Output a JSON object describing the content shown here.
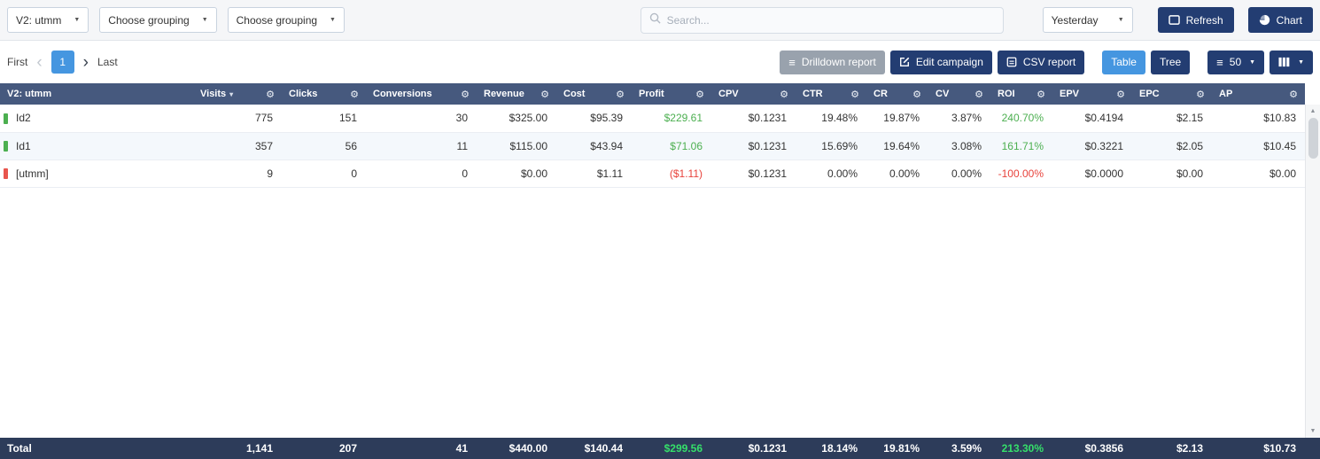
{
  "toolbar": {
    "campaign_select": "V2: utmm",
    "grouping1": "Choose grouping",
    "grouping2": "Choose grouping",
    "search_placeholder": "Search...",
    "date_select": "Yesterday",
    "refresh_label": "Refresh",
    "chart_label": "Chart"
  },
  "pagination": {
    "first": "First",
    "page": "1",
    "last": "Last"
  },
  "actions": {
    "drilldown": "Drilldown report",
    "edit_campaign": "Edit campaign",
    "csv_report": "CSV report",
    "table": "Table",
    "tree": "Tree",
    "page_size": "50"
  },
  "icons": {
    "gear": "⚙",
    "sort_desc": "▾",
    "caret_down": "▼",
    "list": "≡"
  },
  "colors": {
    "header_bg": "#46597e",
    "total_bg": "#2d3c5a",
    "navy_button": "#233d72",
    "active_blue": "#4596e0",
    "positive": "#4caf50",
    "negative": "#e8433c",
    "status_green": "#4caf50",
    "status_red": "#e8554d"
  },
  "table": {
    "columns": [
      {
        "key": "name",
        "label": "V2: utmm",
        "gear": false
      },
      {
        "key": "visits",
        "label": "Visits",
        "gear": true,
        "sort": true
      },
      {
        "key": "clicks",
        "label": "Clicks",
        "gear": true
      },
      {
        "key": "conversions",
        "label": "Conversions",
        "gear": true
      },
      {
        "key": "revenue",
        "label": "Revenue",
        "gear": true
      },
      {
        "key": "cost",
        "label": "Cost",
        "gear": true
      },
      {
        "key": "profit",
        "label": "Profit",
        "gear": true
      },
      {
        "key": "cpv",
        "label": "CPV",
        "gear": true
      },
      {
        "key": "ctr",
        "label": "CTR",
        "gear": true
      },
      {
        "key": "cr",
        "label": "CR",
        "gear": true
      },
      {
        "key": "cv",
        "label": "CV",
        "gear": true
      },
      {
        "key": "roi",
        "label": "ROI",
        "gear": true
      },
      {
        "key": "epv",
        "label": "EPV",
        "gear": true
      },
      {
        "key": "epc",
        "label": "EPC",
        "gear": true
      },
      {
        "key": "ap",
        "label": "AP",
        "gear": true
      }
    ],
    "rows": [
      {
        "status": "green",
        "name": "Id2",
        "visits": "775",
        "clicks": "151",
        "conversions": "30",
        "revenue": "$325.00",
        "cost": "$95.39",
        "profit": "$229.61",
        "profit_class": "pos",
        "cpv": "$0.1231",
        "ctr": "19.48%",
        "cr": "19.87%",
        "cv": "3.87%",
        "roi": "240.70%",
        "roi_class": "pos",
        "epv": "$0.4194",
        "epc": "$2.15",
        "ap": "$10.83"
      },
      {
        "status": "green",
        "name": "Id1",
        "visits": "357",
        "clicks": "56",
        "conversions": "11",
        "revenue": "$115.00",
        "cost": "$43.94",
        "profit": "$71.06",
        "profit_class": "pos",
        "cpv": "$0.1231",
        "ctr": "15.69%",
        "cr": "19.64%",
        "cv": "3.08%",
        "roi": "161.71%",
        "roi_class": "pos",
        "epv": "$0.3221",
        "epc": "$2.05",
        "ap": "$10.45"
      },
      {
        "status": "red",
        "name": "[utmm]",
        "visits": "9",
        "clicks": "0",
        "conversions": "0",
        "revenue": "$0.00",
        "cost": "$1.11",
        "profit": "($1.11)",
        "profit_class": "neg",
        "cpv": "$0.1231",
        "ctr": "0.00%",
        "cr": "0.00%",
        "cv": "0.00%",
        "roi": "-100.00%",
        "roi_class": "neg",
        "epv": "$0.0000",
        "epc": "$0.00",
        "ap": "$0.00"
      }
    ],
    "total": {
      "name": "Total",
      "visits": "1,141",
      "clicks": "207",
      "conversions": "41",
      "revenue": "$440.00",
      "cost": "$140.44",
      "profit": "$299.56",
      "profit_class": "pos",
      "cpv": "$0.1231",
      "ctr": "18.14%",
      "cr": "19.81%",
      "cv": "3.59%",
      "roi": "213.30%",
      "roi_class": "pos",
      "epv": "$0.3856",
      "epc": "$2.13",
      "ap": "$10.73"
    }
  }
}
